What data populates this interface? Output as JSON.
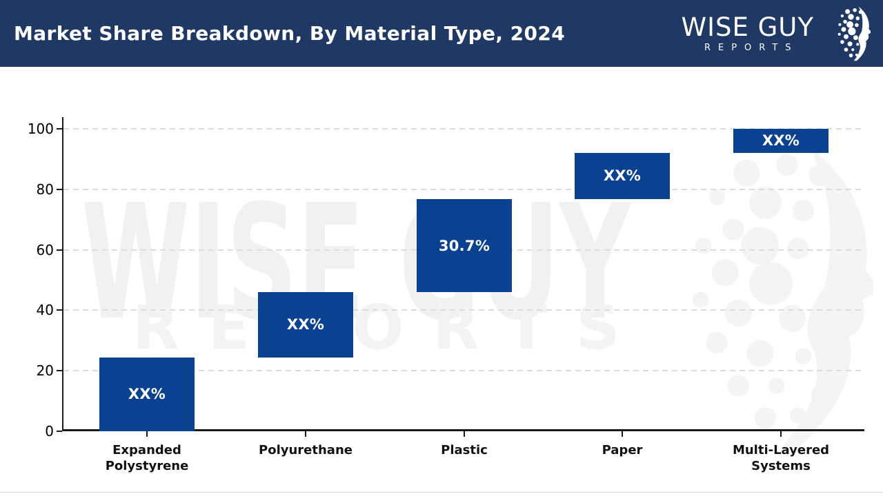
{
  "header": {
    "title": "Market Share Breakdown, By Material Type, 2024",
    "bg_color": "#1f3864",
    "logo": {
      "line1": "WISE GUY",
      "line2": "REPORTS"
    }
  },
  "watermark": {
    "line1": "WISE GUY",
    "line2": "REPORTS"
  },
  "chart_data": {
    "type": "bar",
    "subtype": "waterfall",
    "title": "Market Share Breakdown, By Material Type, 2024",
    "xlabel": "",
    "ylabel": "",
    "ylim": [
      0,
      100
    ],
    "yticks": [
      0,
      20,
      40,
      60,
      80,
      100
    ],
    "grid": "horizontal-dashed",
    "bar_color": "#0a4191",
    "axis_color": "#1a1a1a",
    "categories": [
      "Expanded Polystyrene",
      "Polyurethane",
      "Plastic",
      "Paper",
      "Multi-Layered Systems"
    ],
    "bars": [
      {
        "category": "Expanded Polystyrene",
        "start": 0,
        "end": 24.4,
        "value": 24.4,
        "label": "XX%"
      },
      {
        "category": "Polyurethane",
        "start": 24.4,
        "end": 46.0,
        "value": 21.6,
        "label": "XX%"
      },
      {
        "category": "Plastic",
        "start": 46.0,
        "end": 76.7,
        "value": 30.7,
        "label": "30.7%"
      },
      {
        "category": "Paper",
        "start": 76.7,
        "end": 92.1,
        "value": 15.4,
        "label": "XX%"
      },
      {
        "category": "Multi-Layered Systems",
        "start": 92.1,
        "end": 100,
        "value": 7.9,
        "label": "XX%"
      }
    ]
  }
}
